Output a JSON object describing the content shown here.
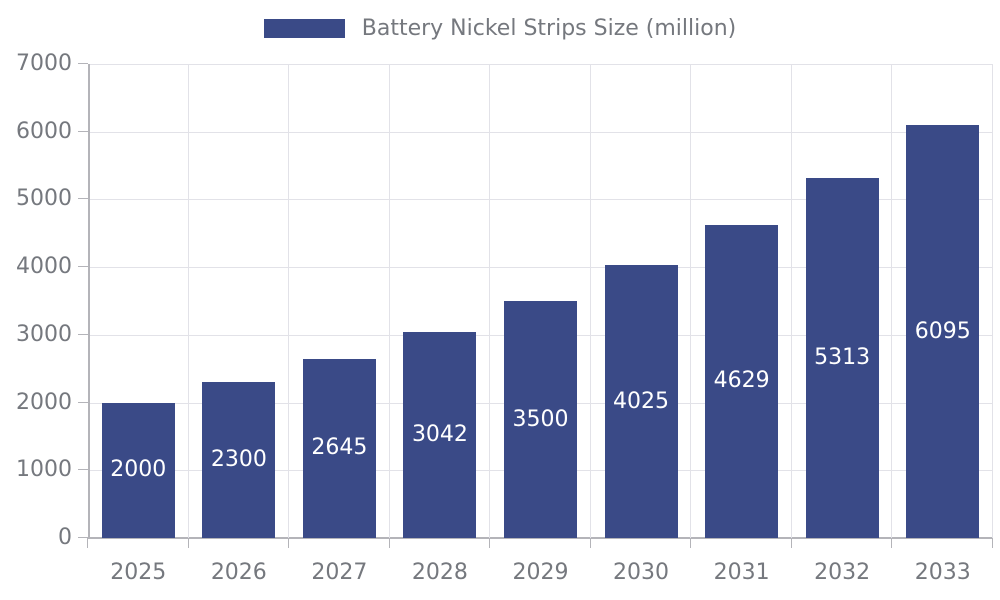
{
  "legend": {
    "label": "Battery Nickel Strips Size (million)",
    "swatch_color": "#3A4A87"
  },
  "chart_data": {
    "type": "bar",
    "title": "",
    "xlabel": "",
    "ylabel": "",
    "categories": [
      "2025",
      "2026",
      "2027",
      "2028",
      "2029",
      "2030",
      "2031",
      "2032",
      "2033"
    ],
    "series": [
      {
        "name": "Battery Nickel Strips Size (million)",
        "values": [
          2000,
          2300,
          2645,
          3042,
          3500,
          4025,
          4629,
          5313,
          6095
        ]
      }
    ],
    "bar_value_labels": [
      "2000",
      "2300",
      "2645",
      "3042",
      "3500",
      "4025",
      "4629",
      "5313",
      "6095"
    ],
    "ylim": [
      0,
      7000
    ],
    "ytick_interval": 1000,
    "ytick_labels": [
      "0",
      "1000",
      "2000",
      "3000",
      "4000",
      "5000",
      "6000",
      "7000"
    ],
    "grid": true,
    "legend_position": "top",
    "colors": {
      "bar": "#3A4A87",
      "bar_label": "#ffffff",
      "axis_text": "#75787e",
      "grid_line": "#e2e2e8",
      "axis_line": "#b4b4b9",
      "background": "#ffffff"
    }
  }
}
